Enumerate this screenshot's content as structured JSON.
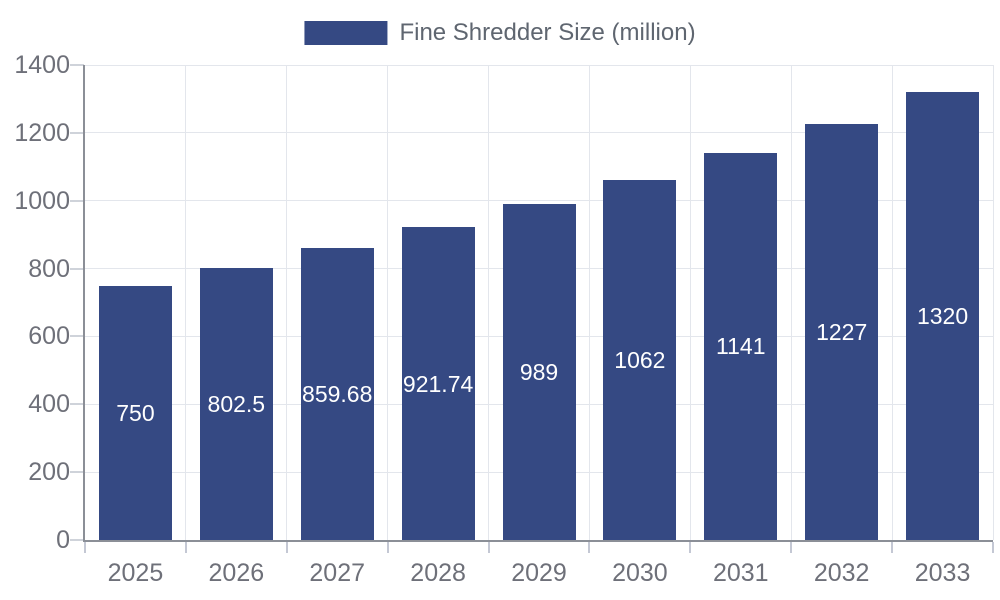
{
  "legend": {
    "label": "Fine Shredder Size (million)",
    "swatch_color": "#354983"
  },
  "chart_data": {
    "type": "bar",
    "title": "Fine Shredder Size (million)",
    "categories": [
      "2025",
      "2026",
      "2027",
      "2028",
      "2029",
      "2030",
      "2031",
      "2032",
      "2033"
    ],
    "series": [
      {
        "name": "Fine Shredder Size (million)",
        "values": [
          750,
          802.5,
          859.68,
          921.74,
          989,
          1062,
          1141,
          1227,
          1320
        ],
        "value_labels": [
          "750",
          "802.5",
          "859.68",
          "921.74",
          "989",
          "1062",
          "1141",
          "1227",
          "1320"
        ]
      }
    ],
    "xlabel": "",
    "ylabel": "",
    "ylim": [
      0,
      1400
    ],
    "yticks": [
      0,
      200,
      400,
      600,
      800,
      1000,
      1200,
      1400
    ],
    "grid": true,
    "legend_position": "top-center",
    "value_label_position": "inside-center"
  },
  "colors": {
    "bar": "#354983",
    "bar_label": "#ffffff",
    "axis_label": "#6e7079",
    "legend_text": "#5f6670",
    "gridline": "#e3e6ec",
    "axis_line": "#8b8f97",
    "y_tick": "#cfd3da",
    "x_tick": "#c4c8d4",
    "background": "#ffffff"
  }
}
